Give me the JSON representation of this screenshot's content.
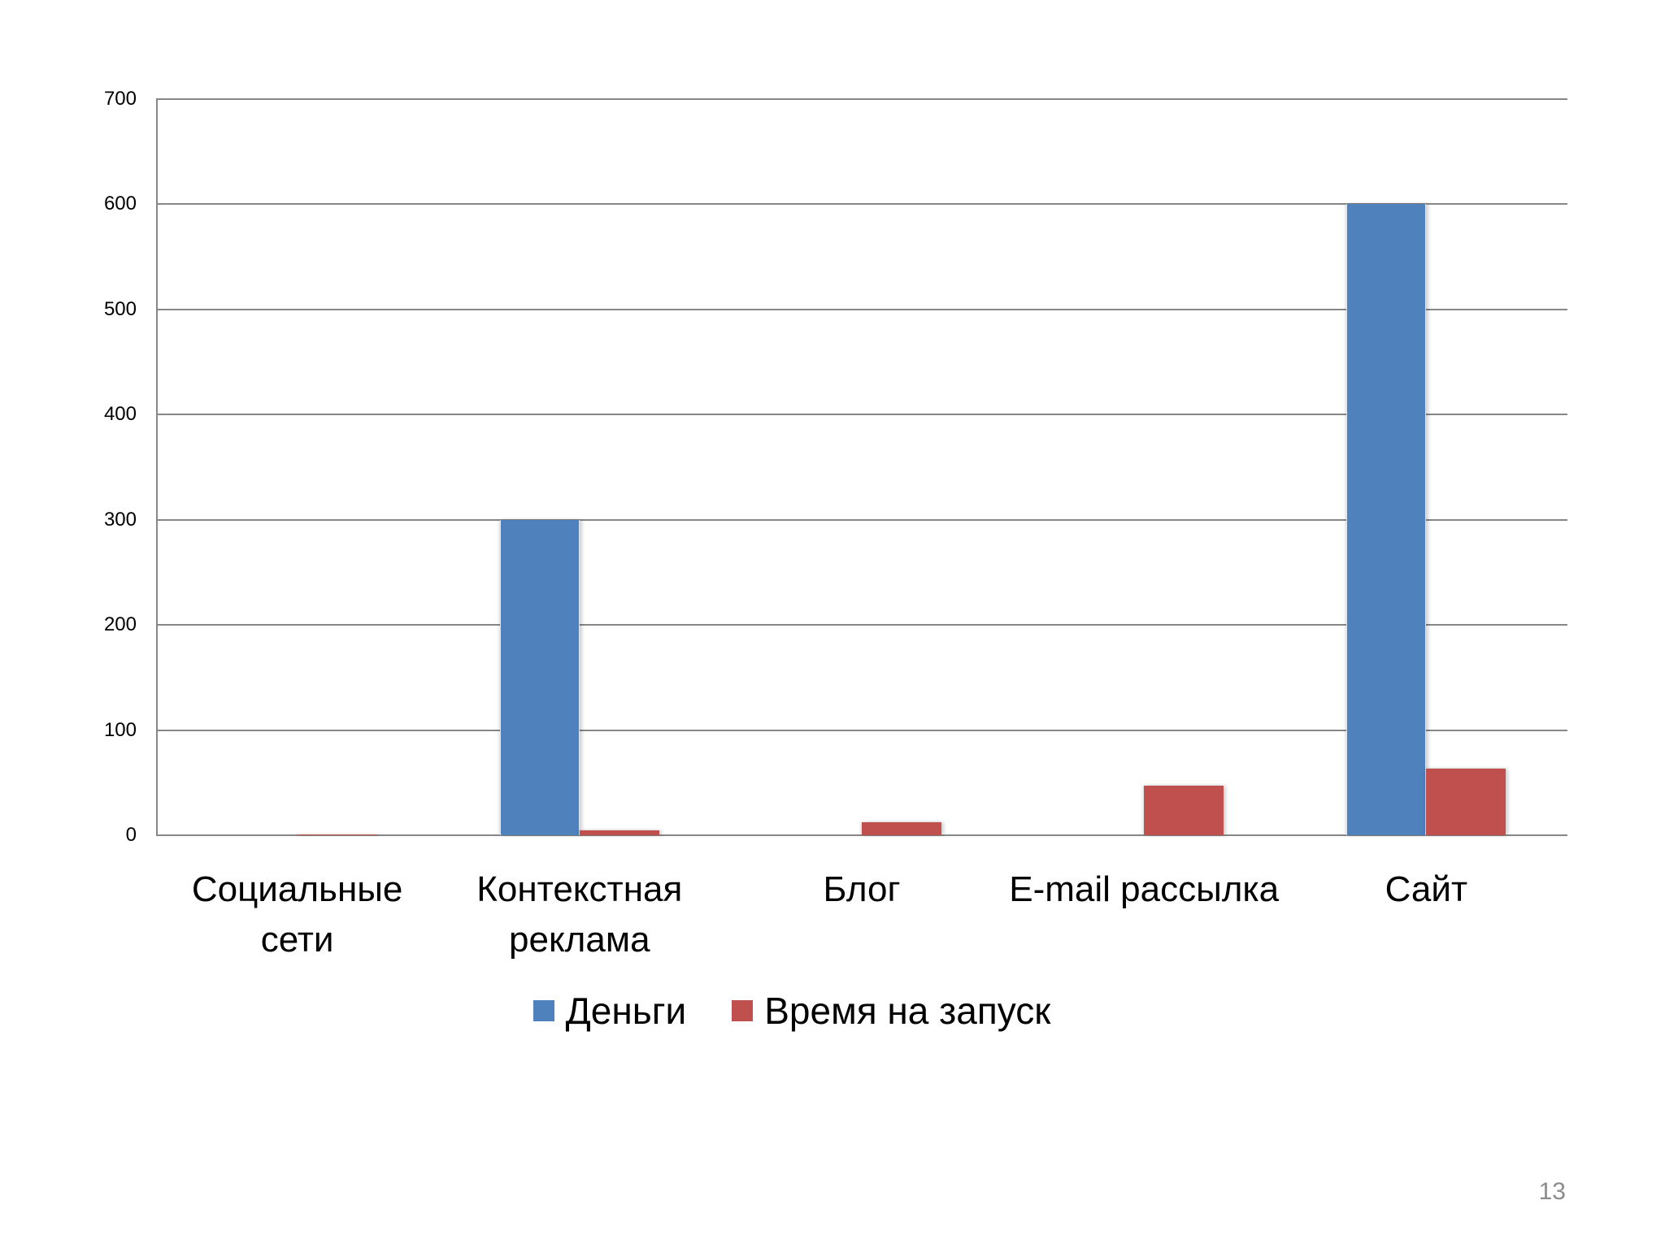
{
  "slide": {
    "page_number": "13"
  },
  "colors": {
    "series_money": "#4f81bd",
    "series_time": "#c0504d",
    "gridline": "#878787",
    "page_number": "#8c8c8c"
  },
  "axis": {
    "y_ticks": [
      "0",
      "100",
      "200",
      "300",
      "400",
      "500",
      "600",
      "700"
    ]
  },
  "categories": [
    {
      "line1": "Социальные",
      "line2": "сети"
    },
    {
      "line1": "Контекстная",
      "line2": "реклама"
    },
    {
      "line1": "Блог",
      "line2": ""
    },
    {
      "line1": "E-mail рассылка",
      "line2": ""
    },
    {
      "line1": "Сайт",
      "line2": ""
    }
  ],
  "legend": {
    "items": [
      {
        "label": "Деньги",
        "color": "#4f81bd"
      },
      {
        "label": "Время на запуск",
        "color": "#c0504d"
      }
    ]
  },
  "chart_data": {
    "type": "bar",
    "title": "",
    "xlabel": "",
    "ylabel": "",
    "categories": [
      "Социальные сети",
      "Контекстная реклама",
      "Блог",
      "E-mail рассылка",
      "Сайт"
    ],
    "series": [
      {
        "name": "Деньги",
        "color": "#4f81bd",
        "values": [
          0,
          300,
          0,
          0,
          600
        ]
      },
      {
        "name": "Время на запуск",
        "color": "#c0504d",
        "values": [
          1,
          5,
          12,
          47,
          63
        ]
      }
    ],
    "ylim": [
      0,
      700
    ],
    "yticks": [
      0,
      100,
      200,
      300,
      400,
      500,
      600,
      700
    ],
    "grid": true,
    "legend_position": "bottom"
  }
}
